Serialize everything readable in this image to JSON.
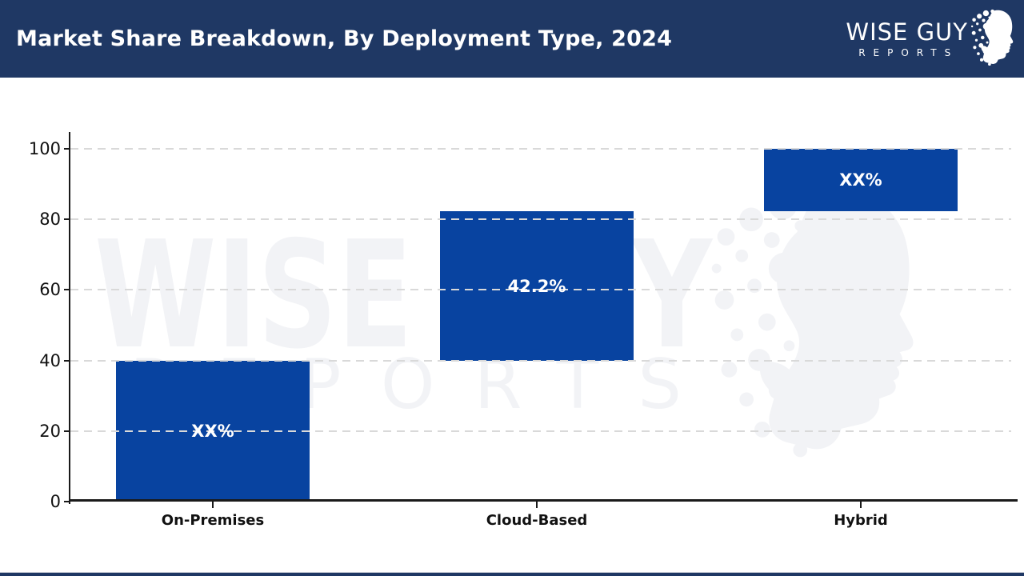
{
  "page": {
    "background": "#ffffff",
    "navy": "#1f3864",
    "bar_blue": "#0843a0",
    "gridline_color": "#d9d9d9",
    "watermark_color": "#f2f3f6"
  },
  "header": {
    "title": "Market Share Breakdown, By Deployment Type, 2024",
    "logo": {
      "primary": "WISE GUY",
      "secondary": "REPORTS",
      "face_icon": "dotted-head-profile"
    }
  },
  "watermark": {
    "line1": "WISE GUY",
    "line2": "REPORTS"
  },
  "chart_data": {
    "type": "bar",
    "variant": "waterfall",
    "title": "Market Share Breakdown, By Deployment Type, 2024",
    "categories": [
      "On-Premises",
      "Cloud-Based",
      "Hybrid"
    ],
    "segments": [
      {
        "category": "On-Premises",
        "start": 0,
        "end": 40,
        "value_label": "XX%"
      },
      {
        "category": "Cloud-Based",
        "start": 40,
        "end": 82.2,
        "value_label": "42.2%"
      },
      {
        "category": "Hybrid",
        "start": 82.2,
        "end": 100,
        "value_label": "XX%"
      }
    ],
    "xlabel": "",
    "ylabel": "",
    "ylim": [
      0,
      100
    ],
    "yticks": [
      0,
      20,
      40,
      60,
      80,
      100
    ],
    "grid": "dashed-horizontal-over-bars",
    "legend": "none",
    "bar_color": "#0843a0",
    "bar_label_color": "#ffffff",
    "axis_color": "#1a1a1a"
  }
}
